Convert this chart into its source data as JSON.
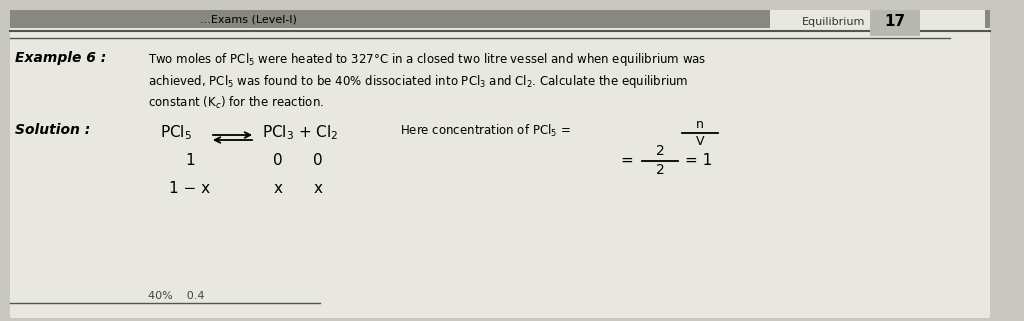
{
  "bg_outer": "#c8c7c0",
  "bg_page": "#e8e7e0",
  "bg_number_box": "#b0b0a8",
  "header_text": "Exams (Level-l)",
  "equilibrium_text": "Equilibrium",
  "page_number": "17",
  "example_label": "Example 6 :",
  "line1": "Two moles of PCl",
  "line1b": "5",
  "line1c": " were heated to 327°C in a closed two litre vessel and when equilibrium was",
  "line2": "achieved, PCl",
  "line2b": "5",
  "line2c": " was found to be 40% dissociated into PCl",
  "line2d": "3",
  "line2e": " and Cl",
  "line2f": "2",
  "line2g": ". Calculate the equilibrium",
  "line3": "constant (K",
  "line3b": "c",
  "line3c": ") for the reaction.",
  "solution_label": "Solution :",
  "row1_col1": "1",
  "row1_col2": "0",
  "row1_col3": "0",
  "row2_col1": "1 − x",
  "row2_col2": "x",
  "row2_col3": "x"
}
